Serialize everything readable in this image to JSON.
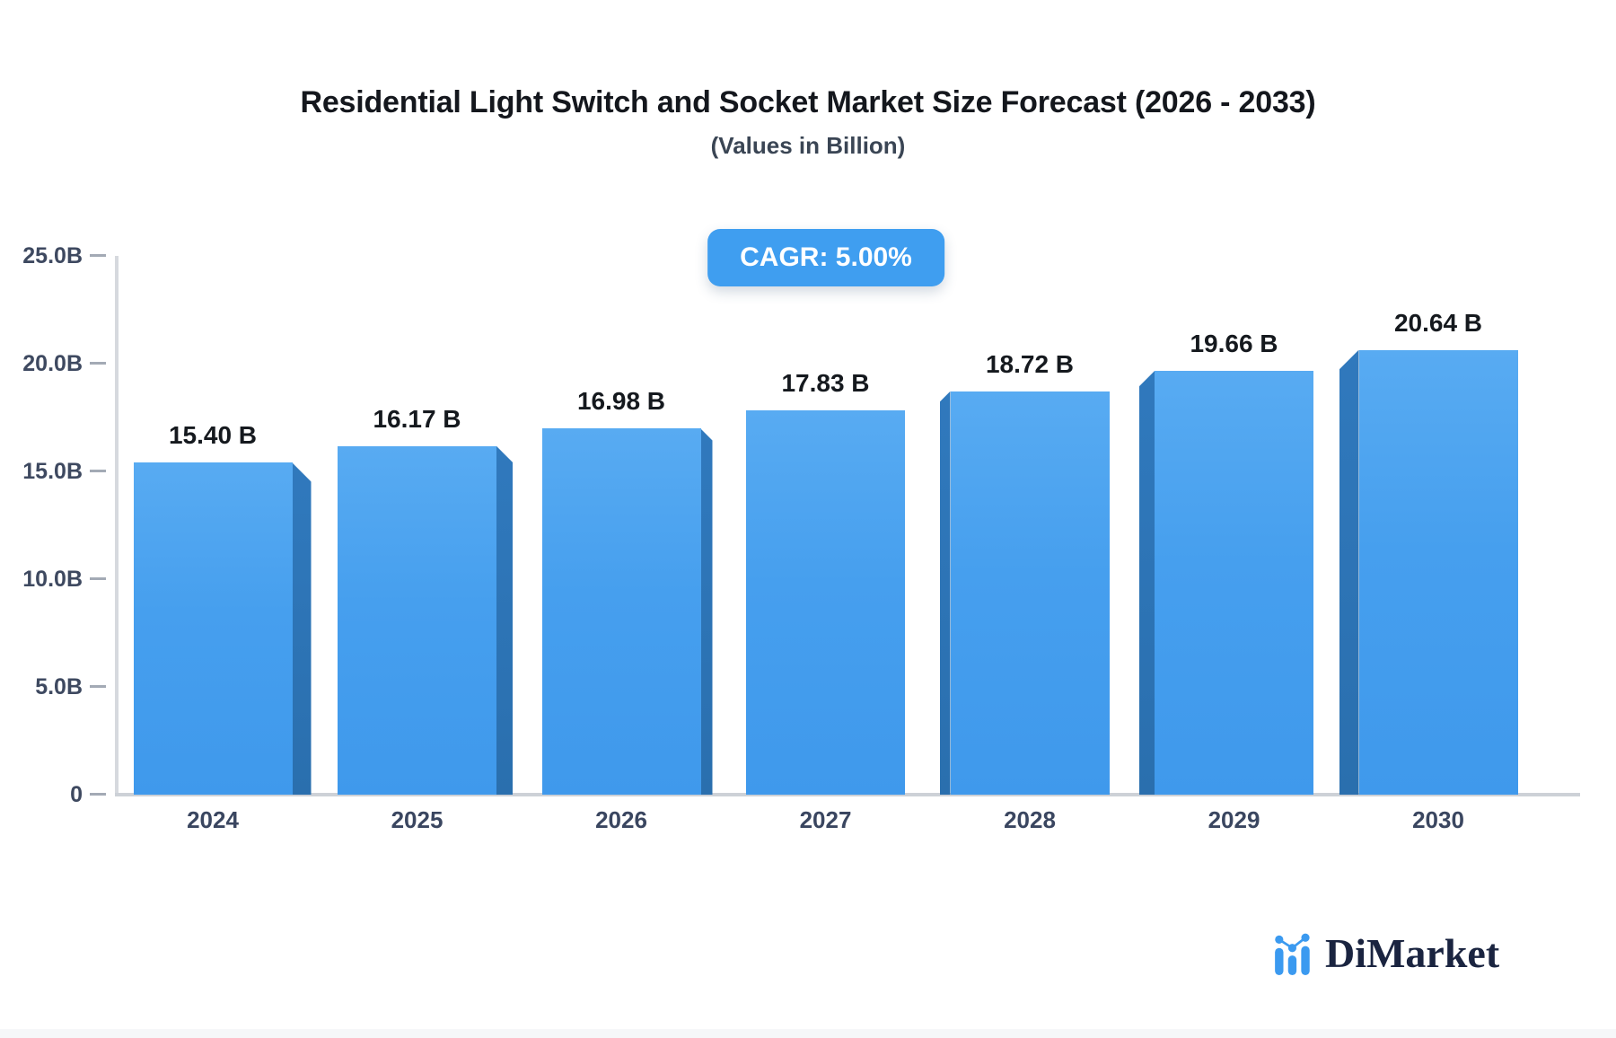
{
  "chart_data": {
    "type": "bar",
    "title": "Residential Light Switch and Socket Market Size Forecast (2026 - 2033)",
    "subtitle": "(Values in Billion)",
    "categories": [
      "2024",
      "2025",
      "2026",
      "2027",
      "2028",
      "2029",
      "2030"
    ],
    "values": [
      15.4,
      16.17,
      16.98,
      17.83,
      18.72,
      19.66,
      20.64
    ],
    "value_labels": [
      "15.40 B",
      "16.17 B",
      "16.98 B",
      "17.83 B",
      "18.72 B",
      "19.66 B",
      "20.64 B"
    ],
    "ylim": [
      0,
      25
    ],
    "y_ticks": [
      {
        "value": 25,
        "label": "25.0B"
      },
      {
        "value": 20,
        "label": "20.0B"
      },
      {
        "value": 15,
        "label": "15.0B"
      },
      {
        "value": 10,
        "label": "10.0B"
      },
      {
        "value": 5,
        "label": "5.0B"
      },
      {
        "value": 0,
        "label": "0"
      }
    ],
    "grid": false,
    "legend": "none",
    "layout_hints": {
      "bar_color_top": "#58abf2",
      "bar_color_bottom": "#3f99ec",
      "bar_side_color": "#2d74b6",
      "axis_color": "#d6d9de",
      "perspective_sides": [
        "right",
        "right",
        "right",
        "none",
        "left",
        "left",
        "left"
      ],
      "perspective_depths": [
        21,
        18,
        13,
        0,
        12,
        17,
        22
      ]
    }
  },
  "badge": {
    "label": "CAGR: 5.00%",
    "color": "#3f9ef0"
  },
  "brand": {
    "name": "DiMarket",
    "icon_color": "#3b9af0",
    "text_color": "#1a2440"
  }
}
